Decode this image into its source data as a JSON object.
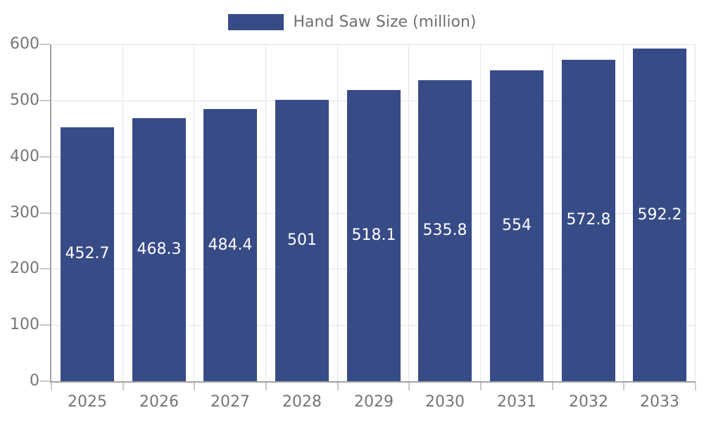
{
  "legend": {
    "label": "Hand Saw Size (million)"
  },
  "colors": {
    "bar": "#374b87",
    "bar_value_text": "#ffffff",
    "axis_text": "#757575",
    "legend_text": "#707070",
    "gridline": "#e4e4e4",
    "axis_line": "#a3a3a3",
    "tick_mark": "#c9c9c9",
    "background": "#ffffff"
  },
  "chart_data": {
    "type": "bar",
    "title": "Hand Saw Size (million)",
    "categories": [
      "2025",
      "2026",
      "2027",
      "2028",
      "2029",
      "2030",
      "2031",
      "2032",
      "2033"
    ],
    "values": [
      452.7,
      468.3,
      484.4,
      501,
      518.1,
      535.8,
      554,
      572.8,
      592.2
    ],
    "series_name": "Hand Saw Size (million)",
    "xlabel": "",
    "ylabel": "",
    "ylim": [
      0,
      600
    ],
    "yticks": [
      0,
      100,
      200,
      300,
      400,
      500,
      600
    ],
    "grid": true,
    "legend_position": "top-center",
    "value_labels": "inside-center",
    "bar_width_fraction": 0.75
  }
}
